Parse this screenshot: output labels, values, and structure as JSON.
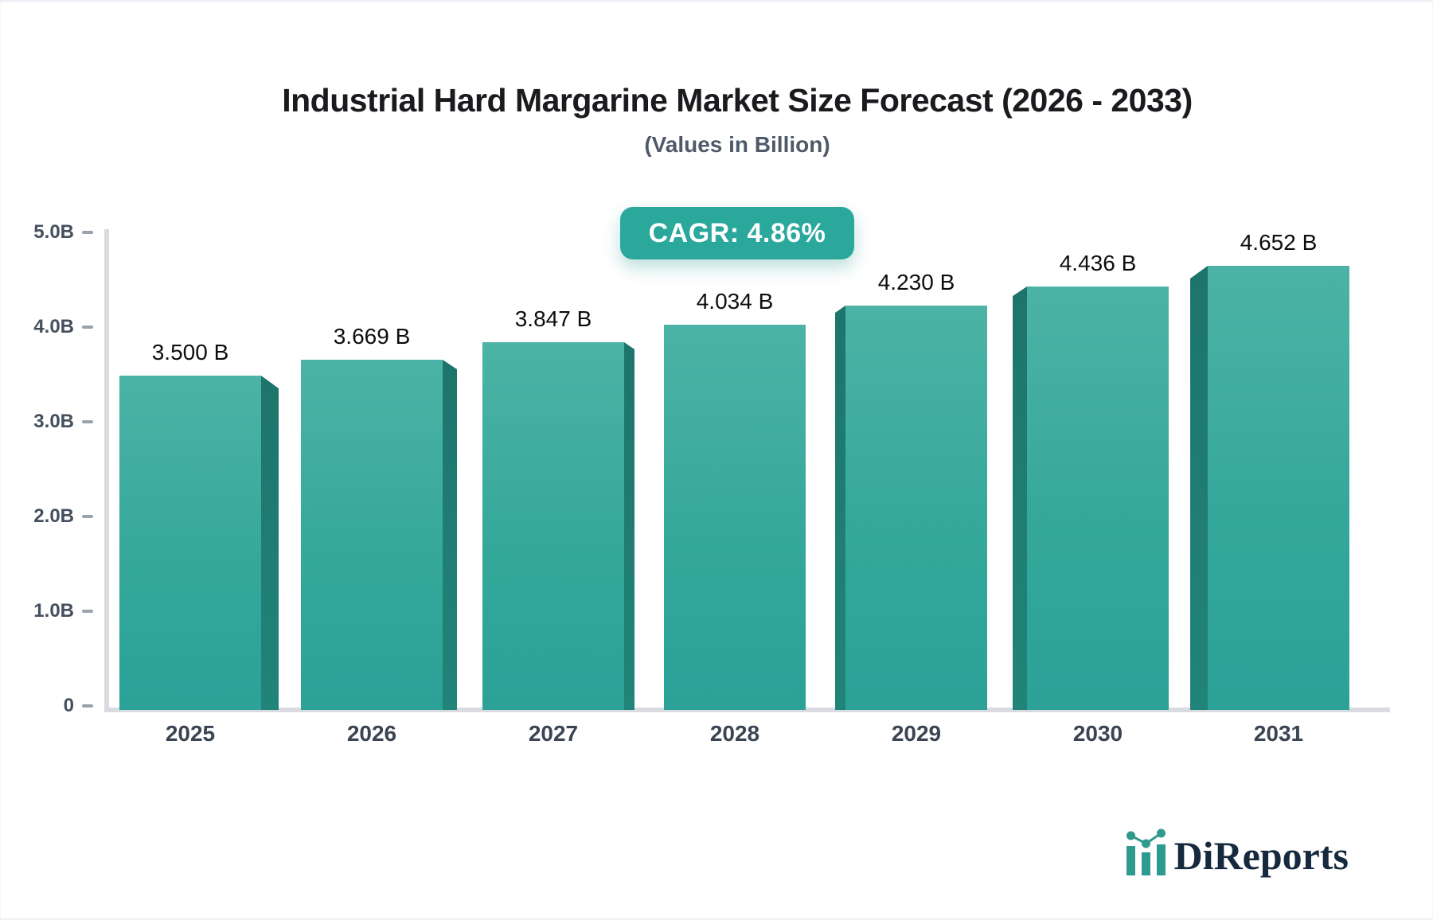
{
  "chart_data": {
    "type": "bar",
    "title": "Industrial Hard Margarine Market Size Forecast (2026 - 2033)",
    "subtitle": "(Values in Billion)",
    "cagr_label": "CAGR: 4.86%",
    "categories": [
      "2025",
      "2026",
      "2027",
      "2028",
      "2029",
      "2030",
      "2031"
    ],
    "values": [
      3.5,
      3.669,
      3.847,
      4.034,
      4.23,
      4.436,
      4.652
    ],
    "value_labels": [
      "3.500 B",
      "3.669 B",
      "3.847 B",
      "4.034 B",
      "4.230 B",
      "4.436 B",
      "4.652 B"
    ],
    "ylabel": "",
    "xlabel": "",
    "y_ticks": [
      "5.0B",
      "4.0B",
      "3.0B",
      "2.0B",
      "1.0B",
      "0"
    ],
    "ylim": [
      0,
      5
    ],
    "grid": false,
    "legend": "none",
    "bar_style": "pseudo-3d, side faces angled toward center bar",
    "colors": {
      "title": "#1a1b1e",
      "subtitle": "#4e5a69",
      "badge_bg": "#2aa89b",
      "badge_text": "#ffffff",
      "bar_top": "#4cb3a6",
      "bar_mid": "#35a89b",
      "bar_bottom": "#2ba197",
      "bar_side": "#1f7b72",
      "axis_line": "#d9dbe0",
      "tick": "#9aa2ad",
      "axis_label": "#454f5e",
      "year_label": "#3b4452",
      "value_label": "#0e0e0f",
      "brand": "#16293e",
      "logo_icon": "#2f9a8e"
    }
  },
  "logo": {
    "text": "DiReports",
    "icon": "mini-bar-line-chart-icon"
  }
}
